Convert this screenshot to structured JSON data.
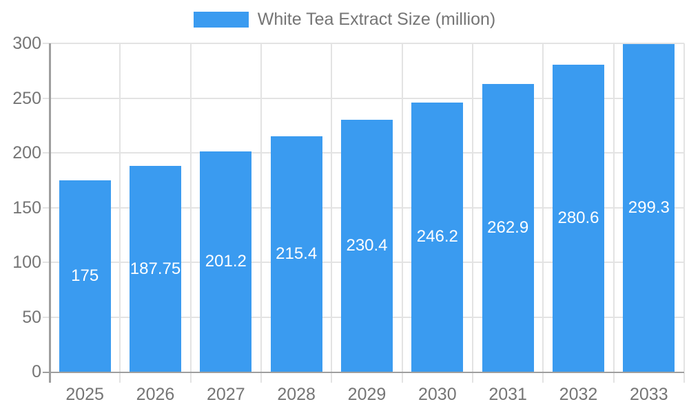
{
  "chart_data": {
    "type": "bar",
    "title": "",
    "legend": "White Tea Extract Size (million)",
    "legend_position": "top-center",
    "categories": [
      "2025",
      "2026",
      "2027",
      "2028",
      "2029",
      "2030",
      "2031",
      "2032",
      "2033"
    ],
    "values": [
      175,
      187.75,
      201.2,
      215.4,
      230.4,
      246.2,
      262.9,
      280.6,
      299.3
    ],
    "value_labels": [
      "175",
      "187.75",
      "201.2",
      "215.4",
      "230.4",
      "246.2",
      "262.9",
      "280.6",
      "299.3"
    ],
    "xlabel": "",
    "ylabel": "",
    "ylim": [
      0,
      300
    ],
    "yticks": [
      0,
      50,
      100,
      150,
      200,
      250,
      300
    ],
    "grid": true,
    "colors": {
      "bar": "#3A9BF0",
      "value_label": "#FFFFFF",
      "axis": "#9E9E9E",
      "grid": "#E3E3E3",
      "tick_label": "#757575"
    }
  }
}
